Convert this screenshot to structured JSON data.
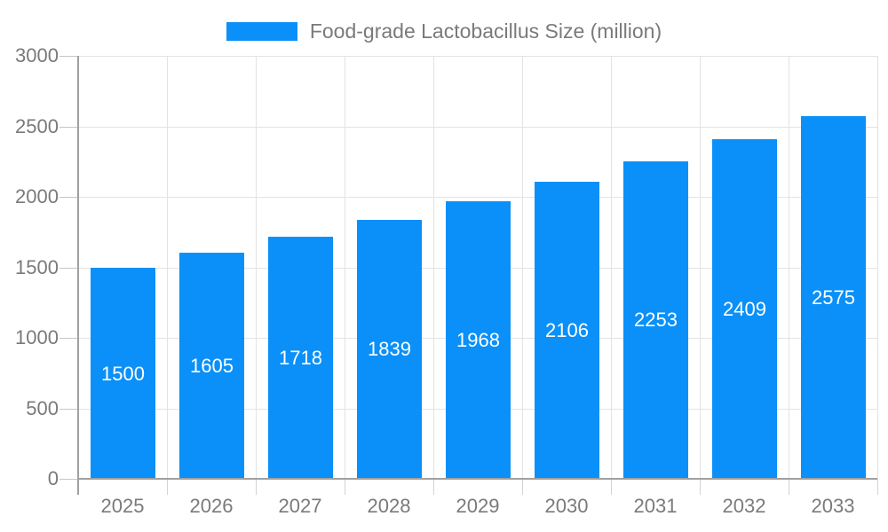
{
  "chart_data": {
    "type": "bar",
    "title": "Food-grade Lactobacillus Size (million)",
    "series_name": "Food-grade Lactobacillus Size (million)",
    "categories": [
      "2025",
      "2026",
      "2027",
      "2028",
      "2029",
      "2030",
      "2031",
      "2032",
      "2033"
    ],
    "values": [
      1500,
      1605,
      1718,
      1839,
      1968,
      2106,
      2253,
      2409,
      2575
    ],
    "xlabel": "",
    "ylabel": "",
    "ylim": [
      0,
      3000
    ],
    "yticks": [
      0,
      500,
      1000,
      1500,
      2000,
      2500,
      3000
    ],
    "grid": true,
    "legend_position": "top",
    "bar_value_labels_visible": true,
    "colors": {
      "bar": "#0a90f8",
      "bar_value_text": "#ffffff",
      "axis_text": "#7a7a7a",
      "legend_text": "#7a7a7a",
      "gridline": "#e3e3e3",
      "axis_line": "#a0a0a0",
      "background": "#ffffff"
    }
  }
}
